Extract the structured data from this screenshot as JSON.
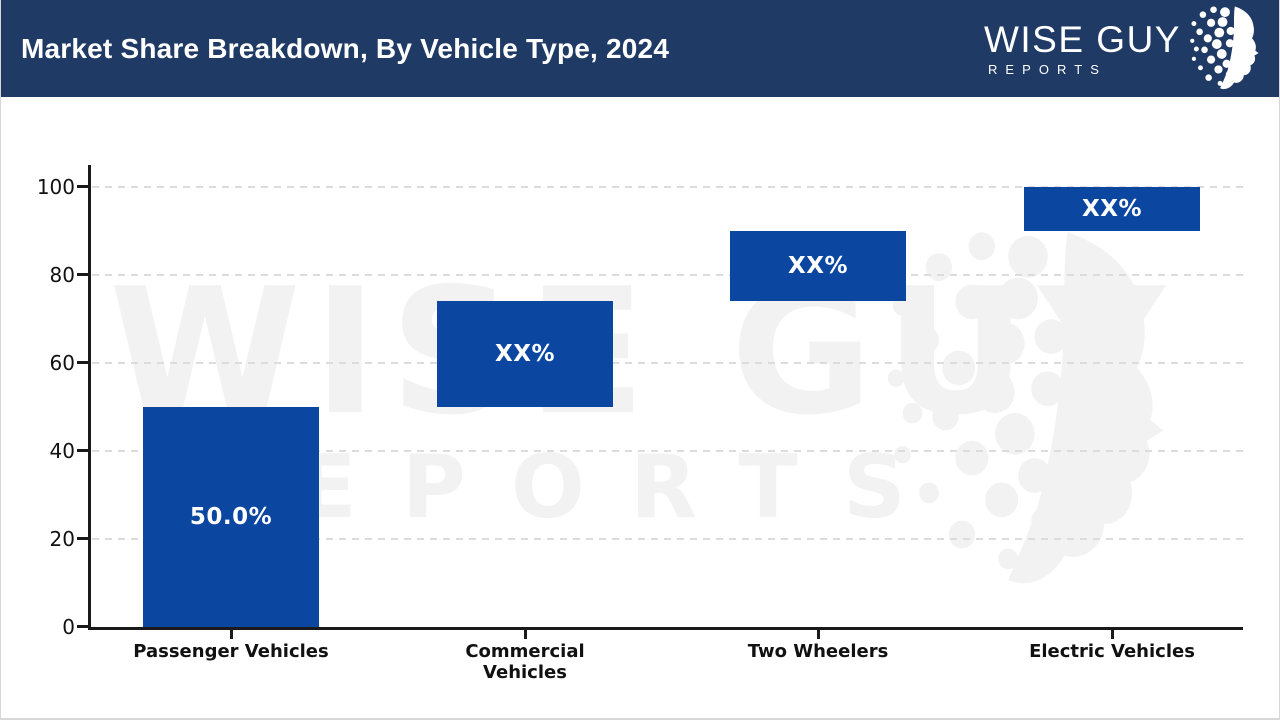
{
  "header": {
    "title": "Market Share Breakdown, By Vehicle Type, 2024",
    "brand": {
      "name": "WISE GUY",
      "sub": "REPORTS"
    }
  },
  "watermark": {
    "line1": "WISE GUY",
    "line2": "REPORTS"
  },
  "chart_data": {
    "type": "bar",
    "variant": "waterfall",
    "title": "Market Share Breakdown, By Vehicle Type, 2024",
    "categories": [
      "Passenger Vehicles",
      "Commercial Vehicles",
      "Two Wheelers",
      "Electric Vehicles"
    ],
    "categories_display": [
      "Passenger Vehicles",
      "Commercial\nVehicles",
      "Two Wheelers",
      "Electric Vehicles"
    ],
    "segments": [
      {
        "category": "Passenger Vehicles",
        "start": 0,
        "end": 50,
        "label": "50.0%"
      },
      {
        "category": "Commercial Vehicles",
        "start": 50,
        "end": 74,
        "label": "XX%"
      },
      {
        "category": "Two Wheelers",
        "start": 74,
        "end": 90,
        "label": "XX%"
      },
      {
        "category": "Electric Vehicles",
        "start": 90,
        "end": 100,
        "label": "XX%"
      }
    ],
    "xlabel": "",
    "ylabel": "",
    "ylim": [
      0,
      104
    ],
    "yticks": [
      0,
      20,
      40,
      60,
      80,
      100
    ],
    "grid": "horizontal-dashed",
    "legend": "none",
    "bar_color": "#0b46a1",
    "bar_label_color": "#ffffff",
    "axis_color": "#1a1a1a",
    "grid_color": "#dcdcdc",
    "header_bg": "#203a66",
    "watermark_color": "#f2f2f2"
  }
}
